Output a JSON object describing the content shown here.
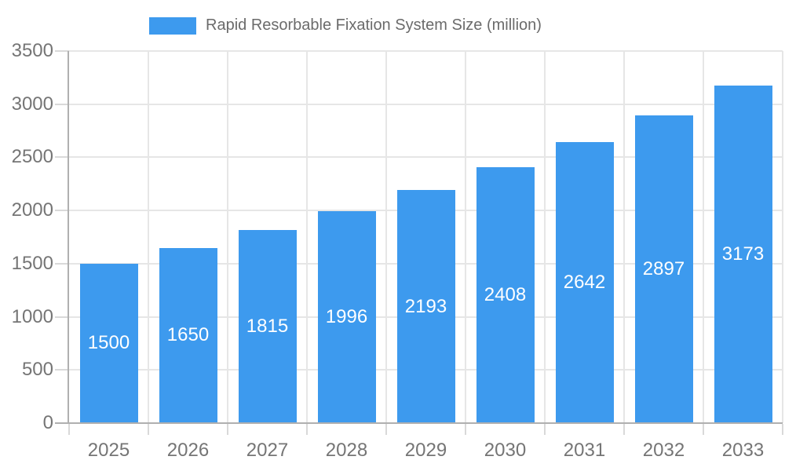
{
  "chart_data": {
    "type": "bar",
    "title": "Rapid Resorbable Fixation System Size (million)",
    "categories": [
      "2025",
      "2026",
      "2027",
      "2028",
      "2029",
      "2030",
      "2031",
      "2032",
      "2033"
    ],
    "values": [
      1500,
      1650,
      1815,
      1996,
      2193,
      2408,
      2642,
      2897,
      3173
    ],
    "xlabel": "",
    "ylabel": "",
    "ylim": [
      0,
      3500
    ],
    "ytick_step": 500,
    "ytick_labels": [
      "0",
      "500",
      "1000",
      "1500",
      "2000",
      "2500",
      "3000",
      "3500"
    ],
    "grid": true,
    "legend_position": "top",
    "colors": {
      "bar": "#3D9AEE",
      "bar_label": "#ffffff",
      "axis_text": "#757575",
      "legend_text": "#6b6b6b",
      "gridline": "#e6e6e6",
      "tick": "#d9d9d9",
      "axis_line": "#b0b0b0"
    }
  }
}
